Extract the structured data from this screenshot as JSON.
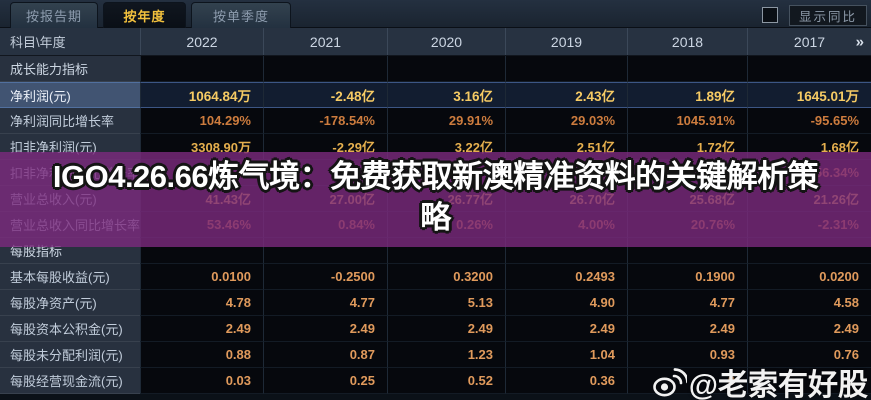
{
  "tabs": [
    {
      "label": "按报告期",
      "active": false
    },
    {
      "label": "按年度",
      "active": true
    },
    {
      "label": "按单季度",
      "active": false
    }
  ],
  "controls": {
    "show_yoy_label": "显示同比",
    "checkbox_checked": false,
    "more_icon": "»"
  },
  "table": {
    "corner_label": "科目\\年度",
    "years": [
      "2022",
      "2021",
      "2020",
      "2019",
      "2018",
      "2017"
    ],
    "rows": [
      {
        "type": "section",
        "label": "成长能力指标"
      },
      {
        "type": "data",
        "label": "净利润(元)",
        "highlight": true,
        "style": "gold-bold",
        "values": [
          "1064.84万",
          "-2.48亿",
          "3.16亿",
          "2.43亿",
          "1.89亿",
          "1645.01万"
        ]
      },
      {
        "type": "data",
        "label": "净利润同比增长率",
        "style": "percent",
        "values": [
          "104.29%",
          "-178.54%",
          "29.91%",
          "29.03%",
          "1045.91%",
          "-95.65%"
        ]
      },
      {
        "type": "data",
        "label": "扣非净利润(元)",
        "style": "gold",
        "values": [
          "3308.90万",
          "-2.29亿",
          "3.22亿",
          "2.51亿",
          "1.72亿",
          "1.68亿"
        ]
      },
      {
        "type": "data",
        "label": "扣非净利润同比增长率",
        "style": "percent",
        "values": [
          "11",
          "-17",
          "",
          "",
          "",
          "56.34%"
        ]
      },
      {
        "type": "data",
        "label": "营业总收入(元)",
        "style": "gold",
        "values": [
          "41.43亿",
          "27.00亿",
          "26.77亿",
          "26.70亿",
          "25.68亿",
          "21.26亿"
        ]
      },
      {
        "type": "data",
        "label": "营业总收入同比增长率",
        "style": "percent",
        "values": [
          "53.46%",
          "0.84%",
          "0.26%",
          "4.00%",
          "20.76%",
          "-2.31%"
        ]
      },
      {
        "type": "section",
        "label": "每股指标"
      },
      {
        "type": "data",
        "label": "基本每股收益(元)",
        "style": "number",
        "values": [
          "0.0100",
          "-0.2500",
          "0.3200",
          "0.2493",
          "0.1900",
          "0.0200"
        ]
      },
      {
        "type": "data",
        "label": "每股净资产(元)",
        "style": "number",
        "values": [
          "4.78",
          "4.77",
          "5.13",
          "4.90",
          "4.77",
          "4.58"
        ]
      },
      {
        "type": "data",
        "label": "每股资本公积金(元)",
        "style": "number",
        "values": [
          "2.49",
          "2.49",
          "2.49",
          "2.49",
          "2.49",
          "2.49"
        ]
      },
      {
        "type": "data",
        "label": "每股未分配利润(元)",
        "style": "number",
        "values": [
          "0.88",
          "0.87",
          "1.23",
          "1.04",
          "0.93",
          "0.76"
        ]
      },
      {
        "type": "data",
        "label": "每股经营现金流(元)",
        "style": "number",
        "values": [
          "0.03",
          "0.25",
          "0.52",
          "0.36",
          "0",
          ""
        ]
      }
    ]
  },
  "overlay": {
    "band_color": "#7c2b7e",
    "lines": [
      "IGO4.26.66炼气境：免费获取新澳精准资料的关键解析策",
      "略"
    ]
  },
  "watermark": {
    "text": "@老索有好股"
  }
}
